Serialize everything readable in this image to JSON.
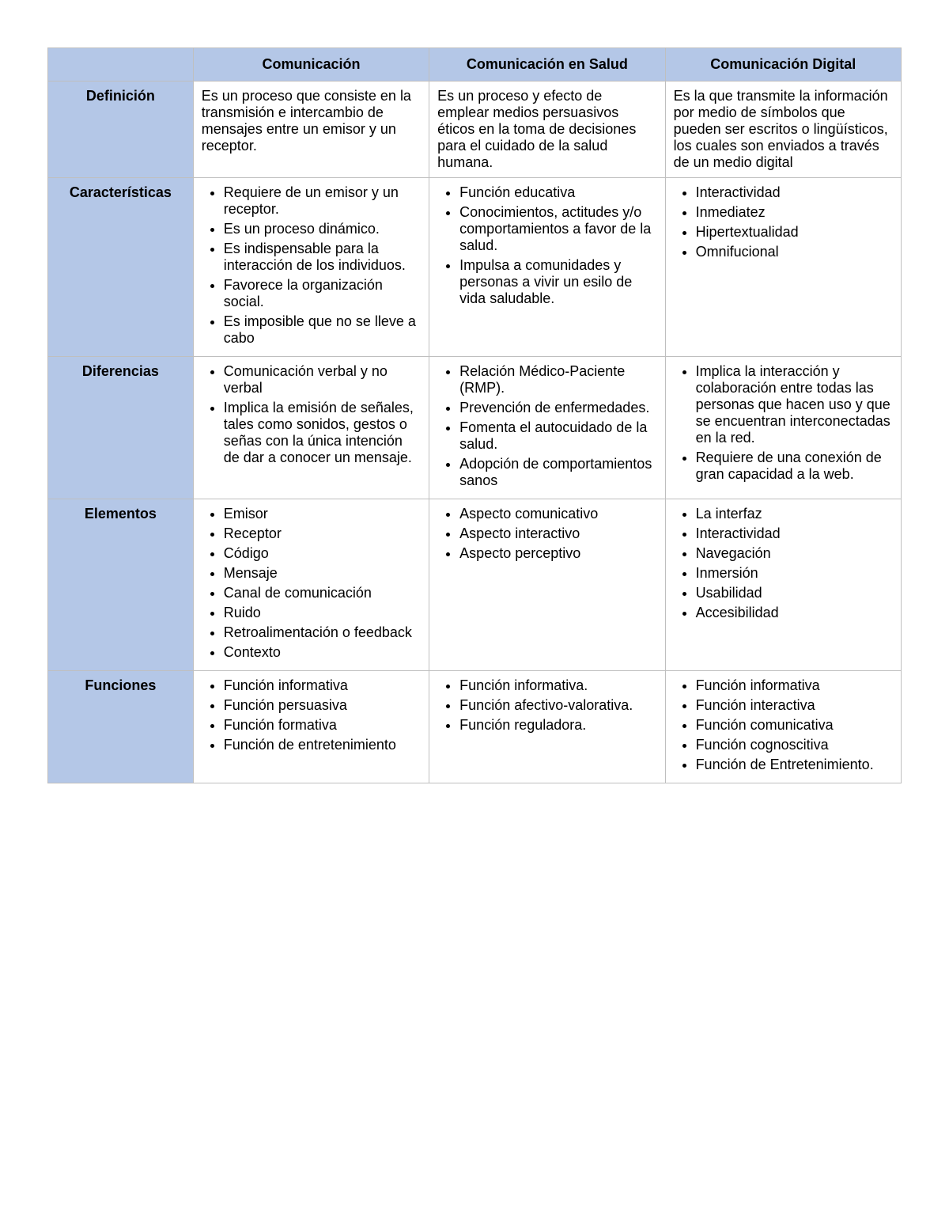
{
  "colors": {
    "header_bg": "#b4c7e7",
    "border": "#bfbfbf",
    "text": "#000000"
  },
  "columns": [
    "Comunicación",
    "Comunicación en Salud",
    "Comunicación Digital"
  ],
  "rows": [
    {
      "label": "Definición",
      "cells": [
        {
          "type": "text",
          "value": "Es un proceso que consiste en la transmisión e intercambio de mensajes entre un emisor y un receptor."
        },
        {
          "type": "text",
          "value": "Es un proceso y efecto de emplear medios persuasivos éticos en la toma de decisiones para el cuidado de la salud humana."
        },
        {
          "type": "text",
          "value": "Es la que transmite la información por medio de símbolos que pueden ser escritos o lingüísticos, los cuales son enviados a través de un medio digital"
        }
      ]
    },
    {
      "label": "Características",
      "cells": [
        {
          "type": "list",
          "items": [
            "Requiere de un emisor y un receptor.",
            "Es un proceso dinámico.",
            "Es indispensable para la interacción de los individuos.",
            "Favorece la organización social.",
            "Es imposible que no se lleve a cabo"
          ]
        },
        {
          "type": "list",
          "items": [
            "Función educativa",
            "Conocimientos, actitudes y/o comportamientos a favor de la salud.",
            "Impulsa a comunidades y personas a vivir un esilo de vida saludable."
          ]
        },
        {
          "type": "list",
          "items": [
            "Interactividad",
            "Inmediatez",
            "Hipertextualidad",
            "Omnifucional"
          ]
        }
      ]
    },
    {
      "label": "Diferencias",
      "cells": [
        {
          "type": "list",
          "items": [
            "Comunicación verbal y no verbal",
            "Implica la emisión de señales, tales como sonidos, gestos o señas con la única intención de dar a conocer un mensaje."
          ]
        },
        {
          "type": "list",
          "items": [
            "Relación Médico-Paciente (RMP).",
            "Prevención de enfermedades.",
            "Fomenta el autocuidado de la salud.",
            "Adopción de comportamientos sanos"
          ]
        },
        {
          "type": "list",
          "items": [
            "Implica la interacción y colaboración entre todas las personas que hacen uso y que se encuentran interconectadas en la red.",
            "Requiere de una conexión de gran  capacidad a la web."
          ]
        }
      ]
    },
    {
      "label": "Elementos",
      "cells": [
        {
          "type": "list",
          "items": [
            "Emisor",
            "Receptor",
            "Código",
            "Mensaje",
            "Canal de comunicación",
            "Ruido",
            "Retroalimentación o feedback",
            "Contexto"
          ]
        },
        {
          "type": "list",
          "items": [
            "Aspecto comunicativo",
            "Aspecto interactivo",
            "Aspecto perceptivo"
          ]
        },
        {
          "type": "list",
          "items": [
            "La interfaz",
            "Interactividad",
            "Navegación",
            "Inmersión",
            "Usabilidad",
            "Accesibilidad"
          ]
        }
      ]
    },
    {
      "label": "Funciones",
      "cells": [
        {
          "type": "list",
          "items": [
            "Función informativa",
            "Función persuasiva",
            "Función formativa",
            "Función de entretenimiento"
          ]
        },
        {
          "type": "list",
          "items": [
            "Función informativa.",
            "Función afectivo-valorativa.",
            "Función reguladora."
          ]
        },
        {
          "type": "list",
          "items": [
            "Función informativa",
            "Función interactiva",
            "Función comunicativa",
            "Función cognoscitiva",
            "Función de Entretenimiento."
          ]
        }
      ]
    }
  ]
}
